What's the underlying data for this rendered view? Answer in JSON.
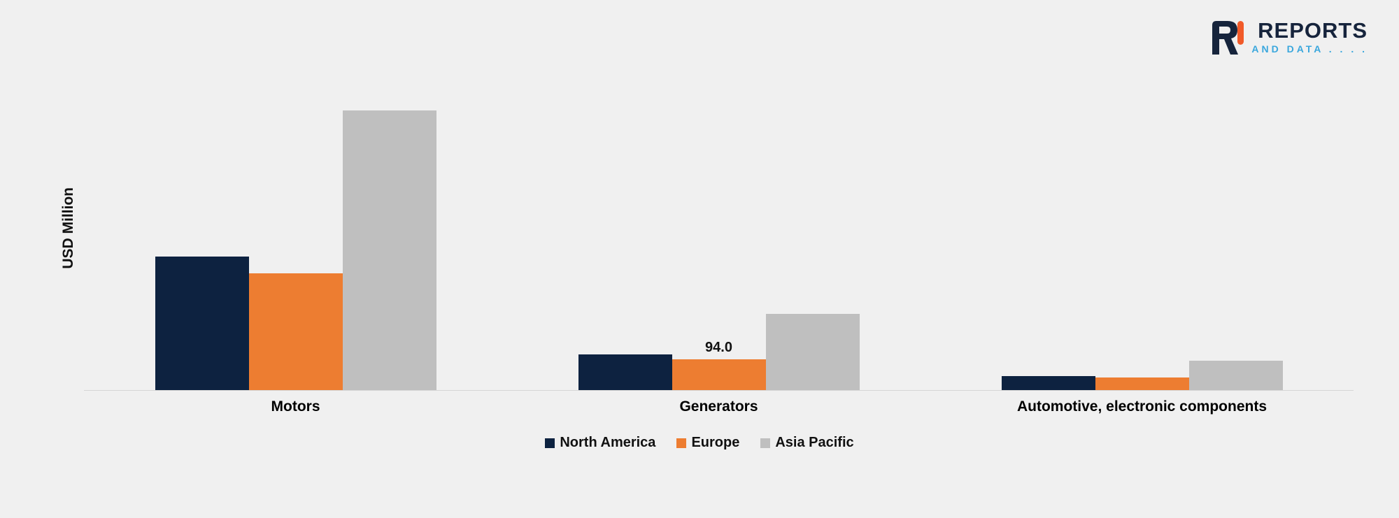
{
  "page": {
    "background_color": "#f0f0f0"
  },
  "logo": {
    "icon": "reports-and-data-logo",
    "title": "REPORTS",
    "subtitle": "AND DATA . . . .",
    "title_color": "#16243c",
    "subtitle_color": "#3aa7dd",
    "accent_color": "#f15a29"
  },
  "chart_data": {
    "type": "bar",
    "title": "",
    "xlabel": "",
    "ylabel": "USD Million",
    "ylim": [
      0,
      900
    ],
    "grid": false,
    "legend_position": "bottom",
    "categories": [
      "Motors",
      "Generators",
      "Automotive, electronic components"
    ],
    "series": [
      {
        "name": "North America",
        "color": "#0d2240",
        "values": [
          410,
          110,
          44
        ]
      },
      {
        "name": "Europe",
        "color": "#ed7d31",
        "values": [
          360,
          94,
          39
        ]
      },
      {
        "name": "Asia Pacific",
        "color": "#bfbfbf",
        "values": [
          860,
          235,
          91
        ]
      }
    ],
    "annotations": [
      {
        "series": "Europe",
        "category": "Generators",
        "text": "94.0"
      }
    ]
  }
}
